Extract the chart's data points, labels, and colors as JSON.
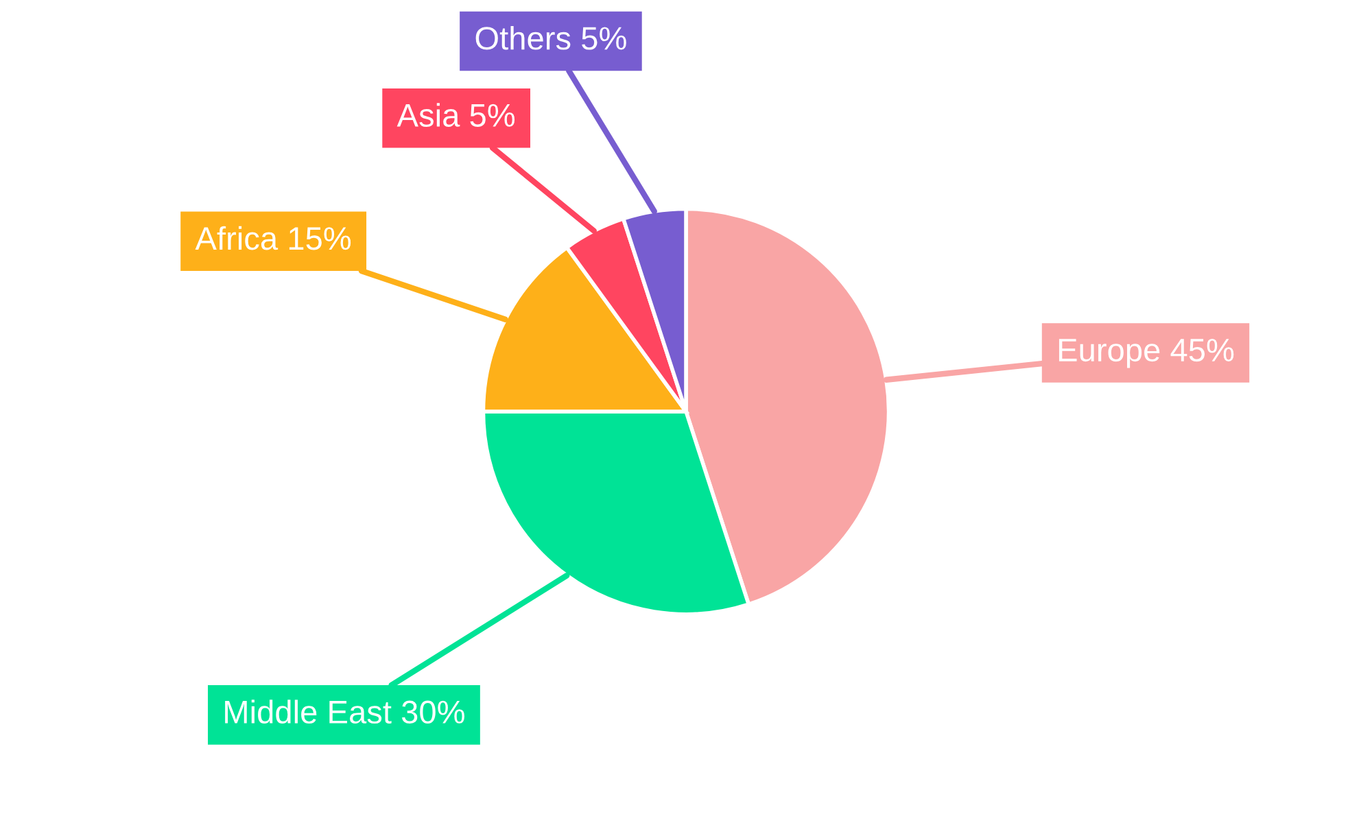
{
  "chart_data": {
    "type": "pie",
    "categories": [
      "Europe",
      "Middle East",
      "Africa",
      "Asia",
      "Others"
    ],
    "values": [
      45,
      30,
      15,
      5,
      5
    ],
    "value_labels": [
      "45%",
      "30%",
      "15%",
      "5%",
      "5%"
    ],
    "colors": [
      "#f9a5a5",
      "#00e396",
      "#feb019",
      "#ff4560",
      "#775dd0"
    ],
    "legend": false
  }
}
